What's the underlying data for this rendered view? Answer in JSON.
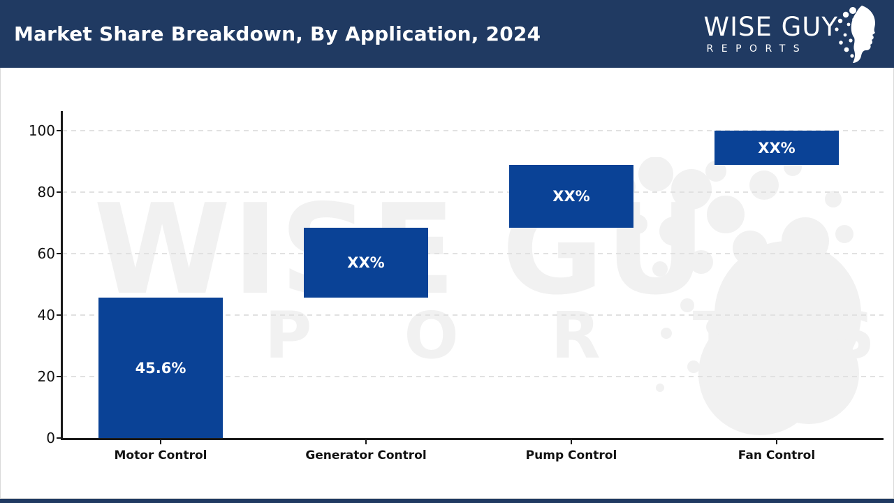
{
  "header": {
    "title": "Market Share Breakdown, By Application, 2024",
    "logo": {
      "line1": "WISE GUY",
      "line2": "REPORTS"
    }
  },
  "chart_data": {
    "type": "bar",
    "subtype": "waterfall",
    "title": "Market Share Breakdown, By Application, 2024",
    "categories": [
      "Motor Control",
      "Generator Control",
      "Pump Control",
      "Fan Control"
    ],
    "segments": [
      {
        "category": "Motor Control",
        "start": 0,
        "end": 45.6,
        "label": "45.6%"
      },
      {
        "category": "Generator Control",
        "start": 45.6,
        "end": 68.4,
        "label": "XX%"
      },
      {
        "category": "Pump Control",
        "start": 68.4,
        "end": 88.8,
        "label": "XX%"
      },
      {
        "category": "Fan Control",
        "start": 88.8,
        "end": 100,
        "label": "XX%"
      }
    ],
    "y_ticks": [
      0,
      20,
      40,
      60,
      80,
      100
    ],
    "ylim": [
      0,
      106
    ],
    "xlabel": "",
    "ylabel": "",
    "grid": "horizontal-dashed",
    "legend": "none",
    "bar_color": "#0a4296",
    "watermark": {
      "line1": "WISE GU",
      "line2": "P O R T S"
    }
  },
  "colors": {
    "header_bg": "#203a62",
    "bar": "#0a4296",
    "axis": "#1a1a1a",
    "grid": "#e1e1e1",
    "watermark": "#f1f1f1",
    "frame_border": "#d9d9d9"
  }
}
